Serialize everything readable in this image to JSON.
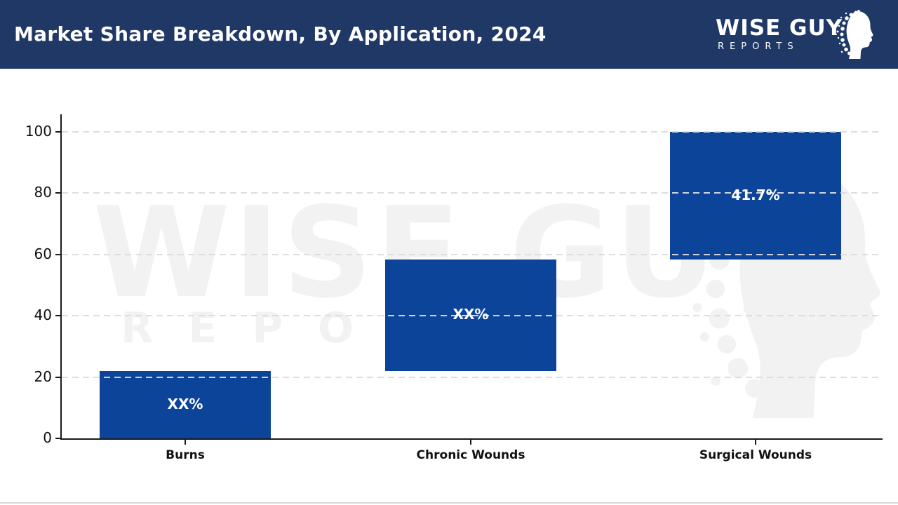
{
  "header": {
    "title": "Market Share Breakdown, By Application, 2024",
    "logo": {
      "primary": "WISE GUY",
      "secondary": "REPORTS"
    }
  },
  "watermark": {
    "primary": "WISE GUY",
    "secondary": "REPORTS"
  },
  "chart_data": {
    "type": "bar",
    "subtype": "floating-segment-waterfall",
    "title": "Market Share Breakdown, By Application, 2024",
    "categories": [
      "Burns",
      "Chronic Wounds",
      "Surgical Wounds"
    ],
    "series": [
      {
        "name": "Burns",
        "start": 0,
        "end": 22,
        "value": 22,
        "value_label": "XX%"
      },
      {
        "name": "Chronic Wounds",
        "start": 22,
        "end": 58.3,
        "value": 36.3,
        "value_label": "XX%"
      },
      {
        "name": "Surgical Wounds",
        "start": 58.3,
        "end": 100,
        "value": 41.7,
        "value_label": "41.7%"
      }
    ],
    "xlabel": "",
    "ylabel": "",
    "yticks": [
      0,
      20,
      40,
      60,
      80,
      100
    ],
    "ylim": [
      0,
      105.6
    ],
    "grid": {
      "horizontal": true,
      "style": "dashed",
      "above_bars": true
    },
    "legend": "none",
    "bar_color": "#0b4499"
  },
  "colors": {
    "header_bg": "#1f3865",
    "header_text": "#ffffff",
    "bar": "#0b4499",
    "bar_label": "#ffffff",
    "grid": "#dcdcdc",
    "axis": "#1a1a1a",
    "tick_label": "#111111",
    "watermark": "#f2f2f2"
  }
}
